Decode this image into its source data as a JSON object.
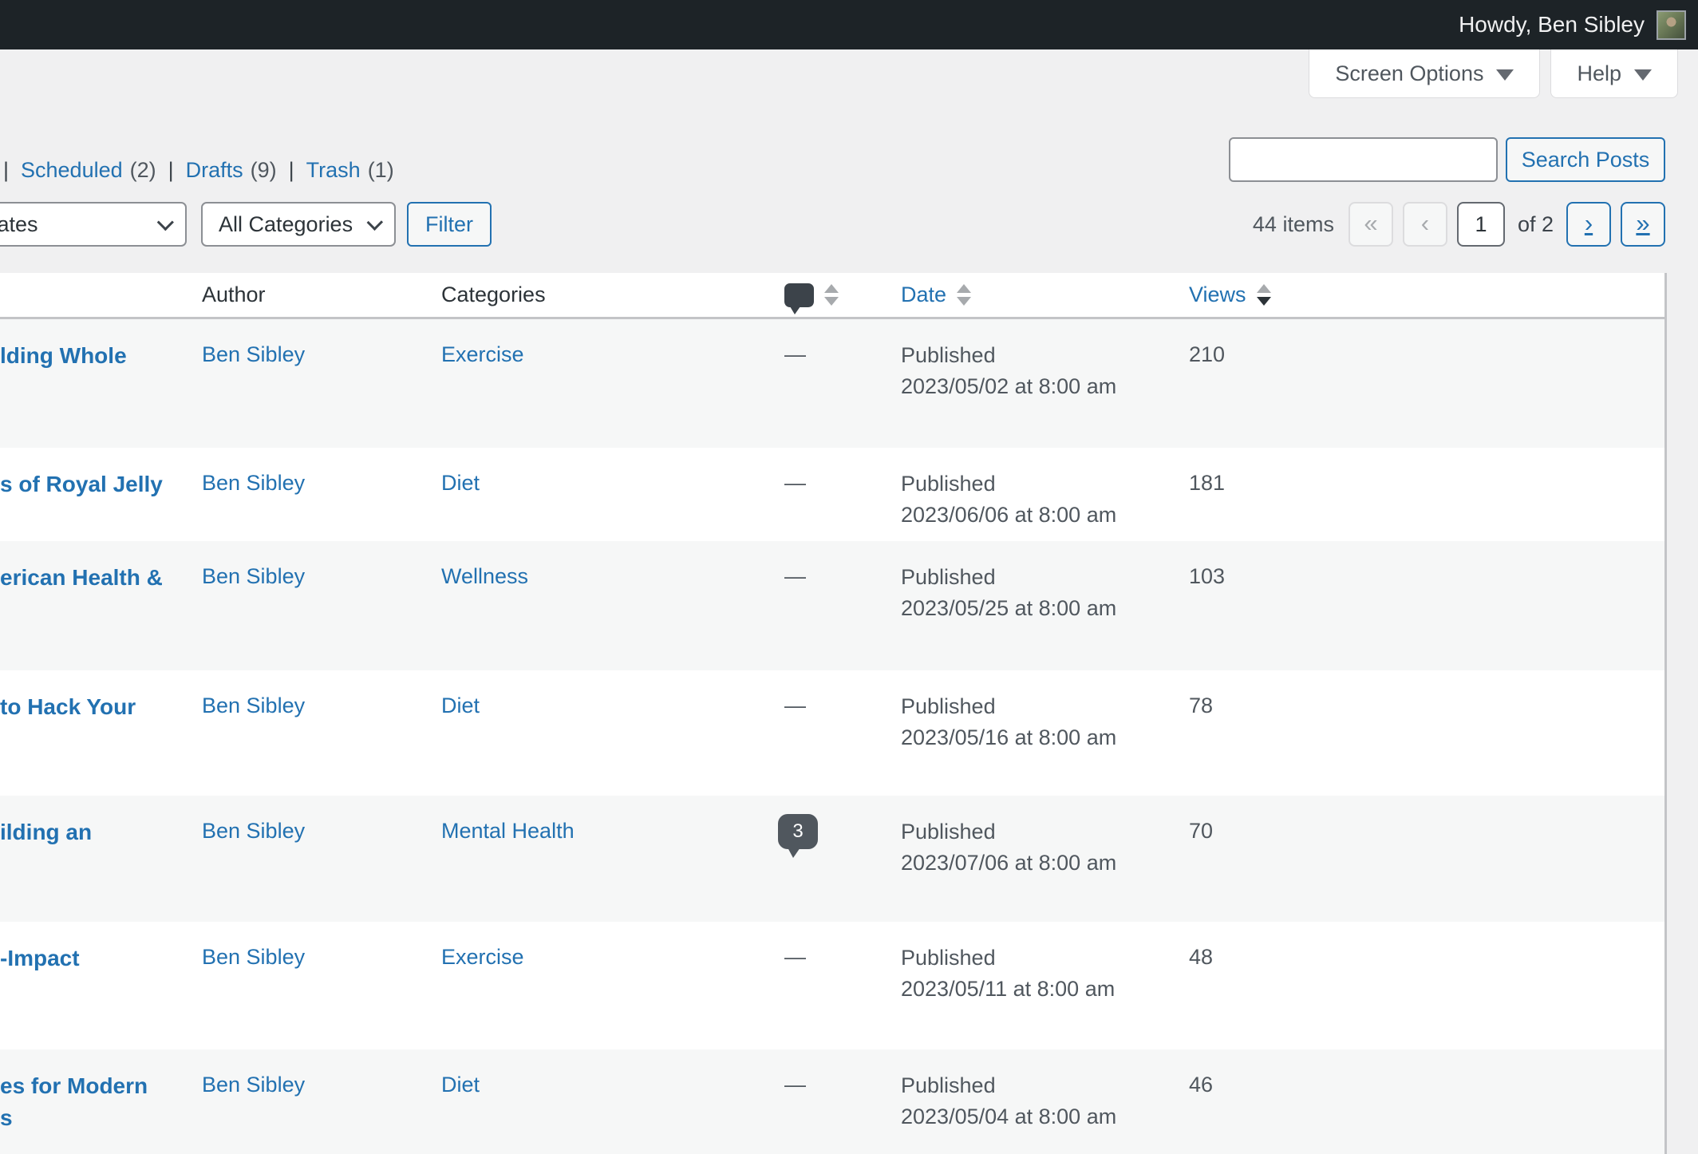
{
  "admin_bar": {
    "howdy_text": "Howdy, Ben Sibley"
  },
  "screen_meta": {
    "screen_options_label": "Screen Options",
    "help_label": "Help"
  },
  "status_filters": {
    "separator": "|",
    "items": [
      {
        "label": "Scheduled",
        "count": "(2)"
      },
      {
        "label": "Drafts",
        "count": "(9)"
      },
      {
        "label": "Trash",
        "count": "(1)"
      }
    ]
  },
  "search": {
    "input_value": "",
    "button_label": "Search Posts"
  },
  "filter_bar": {
    "dates_select_value": "All dates",
    "categories_select_value": "All Categories",
    "filter_button_label": "Filter"
  },
  "pagination": {
    "items_count_text": "44 items",
    "first_label": "«",
    "prev_label": "‹",
    "current_page": "1",
    "of_text": "of 2",
    "next_label": "›",
    "last_label": "»"
  },
  "table": {
    "headers": {
      "author": "Author",
      "categories": "Categories",
      "date": "Date",
      "views": "Views"
    },
    "sort": {
      "column": "Views",
      "direction": "desc"
    },
    "rows": [
      {
        "title": "lding Whole",
        "author": "Ben Sibley",
        "category": "Exercise",
        "comments": "—",
        "status": "Published",
        "date": "2023/05/02 at 8:00 am",
        "views": "210"
      },
      {
        "title": "s of Royal Jelly",
        "author": "Ben Sibley",
        "category": "Diet",
        "comments": "—",
        "status": "Published",
        "date": "2023/06/06 at 8:00 am",
        "views": "181"
      },
      {
        "title": "erican Health &",
        "author": "Ben Sibley",
        "category": "Wellness",
        "comments": "—",
        "status": "Published",
        "date": "2023/05/25 at 8:00 am",
        "views": "103"
      },
      {
        "title": "to Hack Your",
        "author": "Ben Sibley",
        "category": "Diet",
        "comments": "—",
        "status": "Published",
        "date": "2023/05/16 at 8:00 am",
        "views": "78"
      },
      {
        "title": "ilding an",
        "author": "Ben Sibley",
        "category": "Mental Health",
        "comments_bubble": "3",
        "status": "Published",
        "date": "2023/07/06 at 8:00 am",
        "views": "70"
      },
      {
        "title": "-Impact",
        "author": "Ben Sibley",
        "category": "Exercise",
        "comments": "—",
        "status": "Published",
        "date": "2023/05/11 at 8:00 am",
        "views": "48"
      },
      {
        "title": "es for Modern",
        "title_line2": "s",
        "author": "Ben Sibley",
        "category": "Diet",
        "comments": "—",
        "status": "Published",
        "date": "2023/05/04 at 8:00 am",
        "views": "46"
      }
    ]
  },
  "icons": {
    "comments_header": "comment-bubble-icon",
    "tab_caret": "caret-down-icon",
    "select_chevron": "chevron-down-icon",
    "sort_up": "sort-up-arrow",
    "sort_down": "sort-down-arrow"
  },
  "colors": {
    "accent": "#2271b1",
    "admin_bar_bg": "#1d2327",
    "page_bg": "#f0f0f1",
    "stripe_bg": "#f6f7f7",
    "border": "#c3c4c7"
  }
}
